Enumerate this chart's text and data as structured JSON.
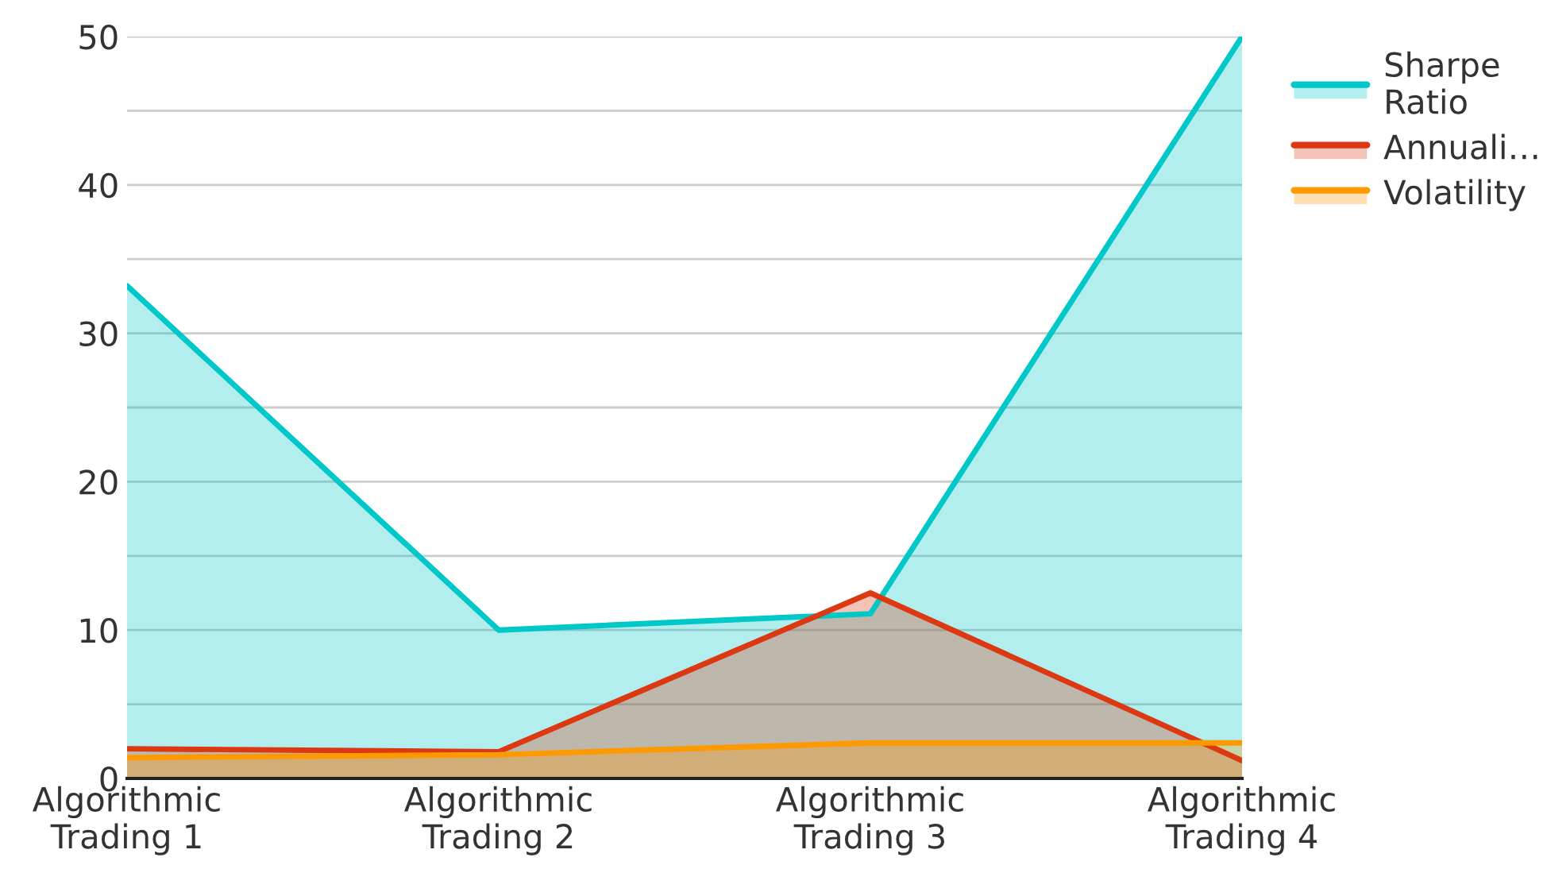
{
  "chart_data": {
    "type": "area",
    "categories": [
      "Algorithmic\nTrading 1",
      "Algorithmic\nTrading 2",
      "Algorithmic\nTrading 3",
      "Algorithmic\nTrading 4"
    ],
    "series": [
      {
        "name": "Sharpe\nRatio",
        "color": "#00c8c8",
        "values": [
          33.2,
          10.0,
          11.1,
          50.0
        ]
      },
      {
        "name": "Annuali…",
        "color": "#dc3912",
        "values": [
          2.0,
          1.8,
          12.5,
          1.2
        ]
      },
      {
        "name": "Volatility",
        "color": "#ff9900",
        "values": [
          1.4,
          1.6,
          2.4,
          2.4
        ]
      }
    ],
    "ylim": [
      0,
      50
    ],
    "yticks": [
      0,
      {
        "value": 5,
        "label": null
      },
      10,
      {
        "value": 15,
        "label": null
      },
      20,
      {
        "value": 25,
        "label": null
      },
      30,
      {
        "value": 35,
        "label": null
      },
      40,
      {
        "value": 45,
        "label": null
      },
      50
    ],
    "grid": "y",
    "legend": "top right"
  }
}
